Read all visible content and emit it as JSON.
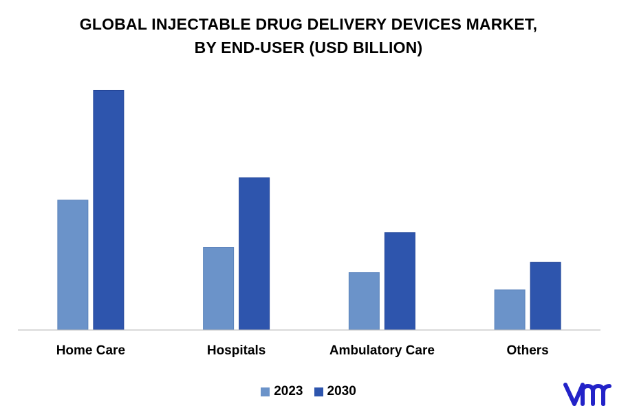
{
  "title_line1": "GLOBAL INJECTABLE DRUG DELIVERY DEVICES MARKET,",
  "title_line2": "BY END-USER (USD BILLION)",
  "chart_data": {
    "type": "bar",
    "categories": [
      "Home Care",
      "Hospitals",
      "Ambulatory Care",
      "Others"
    ],
    "series": [
      {
        "name": "2023",
        "values": [
          5.2,
          3.3,
          2.3,
          1.6
        ],
        "color": "#6b93c9"
      },
      {
        "name": "2030",
        "values": [
          9.6,
          6.1,
          3.9,
          2.7
        ],
        "color": "#2e55ad"
      }
    ],
    "ylim": [
      0,
      10
    ],
    "grid": false,
    "legend": "bottom-center",
    "xlabel": "",
    "ylabel": ""
  },
  "logo": {
    "icon": "vmr-logo-icon",
    "color": "#2323c8"
  }
}
